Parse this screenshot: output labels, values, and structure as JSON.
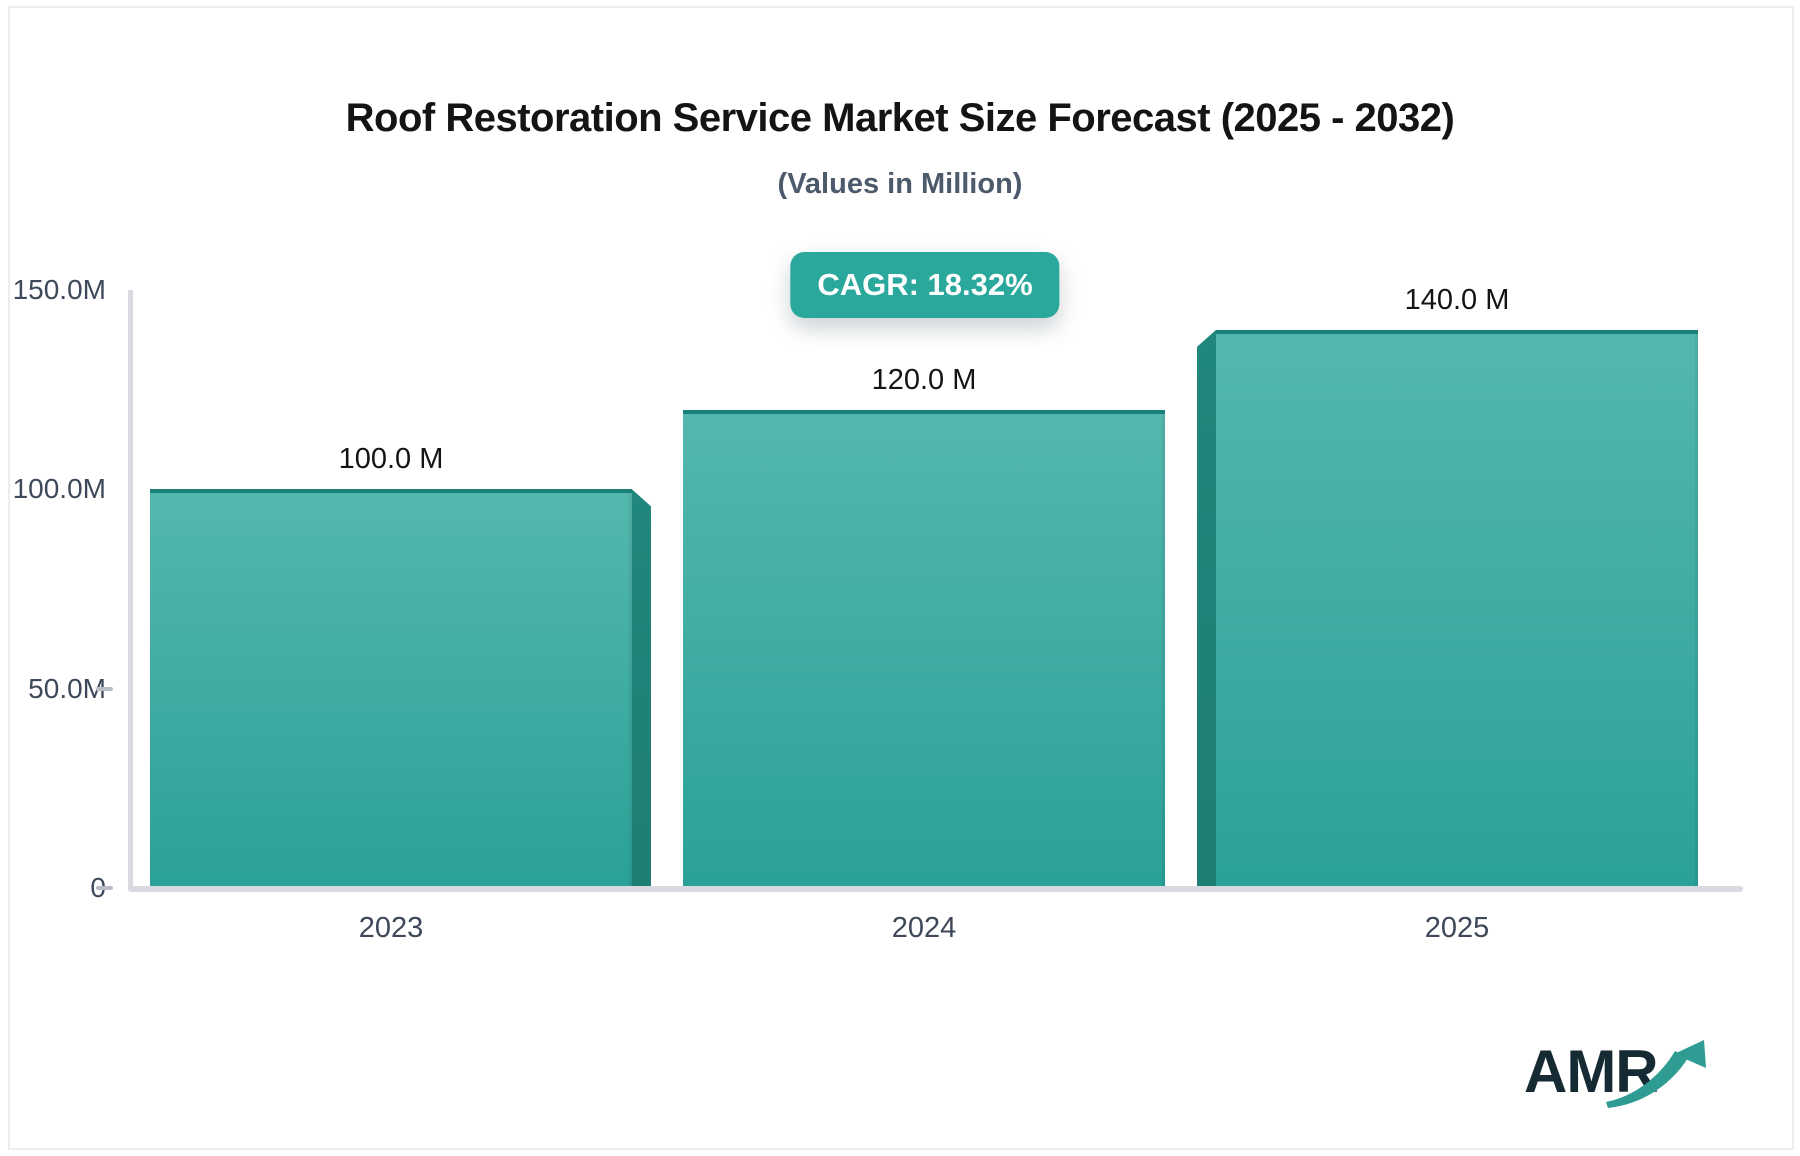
{
  "header": {
    "title": "Roof Restoration Service Market Size Forecast (2025 - 2032)",
    "subtitle": "(Values in Million)"
  },
  "badge": {
    "label": "CAGR: 18.32%"
  },
  "chart_data": {
    "type": "bar",
    "title": "Roof Restoration Service Market Size Forecast (2025 - 2032)",
    "subtitle": "(Values in Million)",
    "unit": "Million",
    "cagr_percent": 18.32,
    "categories": [
      "2023",
      "2024",
      "2025"
    ],
    "values": [
      100.0,
      120.0,
      140.0
    ],
    "value_labels": [
      "100.0 M",
      "120.0 M",
      "140.0 M"
    ],
    "ylim": [
      0,
      150
    ],
    "yticks": [
      {
        "label": "150.0M",
        "value": 150,
        "dash": false
      },
      {
        "label": "100.0M",
        "value": 100,
        "dash": false
      },
      {
        "label": "50.0M",
        "value": 50,
        "dash": true
      },
      {
        "label": "0",
        "value": 0,
        "dash": true
      }
    ],
    "grid": false,
    "legend": null,
    "colors": {
      "bar_top": "#54B7AD",
      "bar_bottom": "#2AA197",
      "bar_border": "#1A817A",
      "bar_side": "#1F7E73",
      "badge_bg": "#2AA89C",
      "axis_line": "#D8DADF",
      "tick_text": "#3E4A5B",
      "value_text": "#141414"
    }
  },
  "logo": {
    "text": "AMR"
  }
}
